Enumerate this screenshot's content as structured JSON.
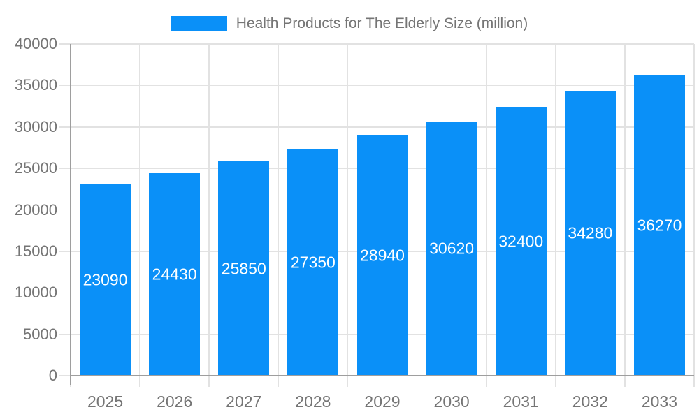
{
  "legend": {
    "label": "Health Products for The Elderly Size (million)"
  },
  "colors": {
    "background": "#ffffff",
    "bar": "#0a90f8",
    "grid": "#e2e2e2",
    "axis": "#9e9e9e",
    "text": "#757575",
    "value_label": "#ffffff"
  },
  "chart_data": {
    "type": "bar",
    "title": "Health Products for The Elderly Size (million)",
    "categories": [
      "2025",
      "2026",
      "2027",
      "2028",
      "2029",
      "2030",
      "2031",
      "2032",
      "2033"
    ],
    "values": [
      23090,
      24430,
      25850,
      27350,
      28940,
      30620,
      32400,
      34280,
      36270
    ],
    "series": [
      {
        "name": "Health Products for The Elderly Size (million)",
        "values": [
          23090,
          24430,
          25850,
          27350,
          28940,
          30620,
          32400,
          34280,
          36270
        ]
      }
    ],
    "xlabel": "",
    "ylabel": "",
    "ylim": [
      0,
      40000
    ],
    "yticks": [
      0,
      5000,
      10000,
      15000,
      20000,
      25000,
      30000,
      35000,
      40000
    ],
    "grid": true,
    "legend_position": "top",
    "value_label_position": "inside-middle"
  }
}
